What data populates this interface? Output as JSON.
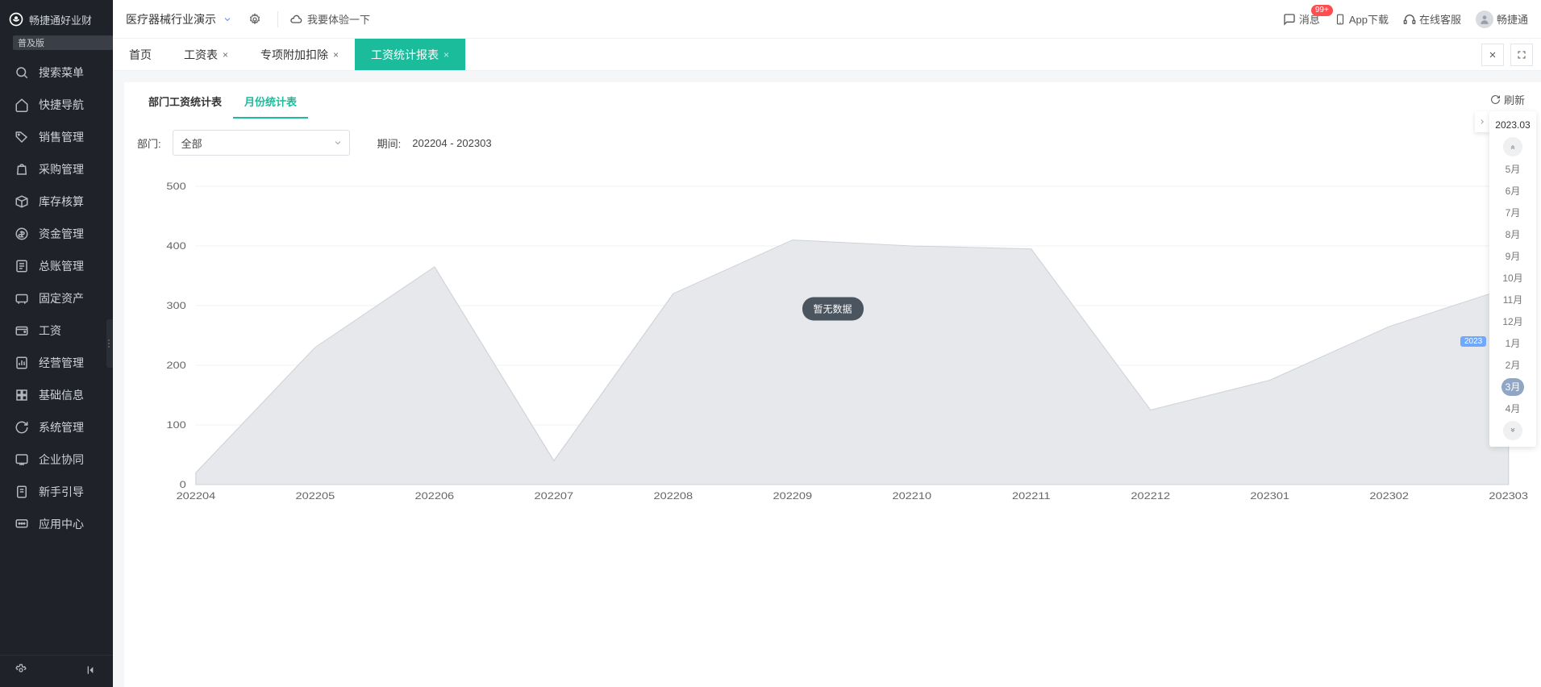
{
  "brand": {
    "name": "畅捷通好业财",
    "edition": "普及版"
  },
  "sidebar": {
    "items": [
      {
        "label": "搜索菜单",
        "icon": "search"
      },
      {
        "label": "快捷导航",
        "icon": "home"
      },
      {
        "label": "销售管理",
        "icon": "tag"
      },
      {
        "label": "采购管理",
        "icon": "bag"
      },
      {
        "label": "库存核算",
        "icon": "box"
      },
      {
        "label": "资金管理",
        "icon": "coin"
      },
      {
        "label": "总账管理",
        "icon": "ledger"
      },
      {
        "label": "固定资产",
        "icon": "asset"
      },
      {
        "label": "工资",
        "icon": "wallet"
      },
      {
        "label": "经营管理",
        "icon": "report"
      },
      {
        "label": "基础信息",
        "icon": "grid"
      },
      {
        "label": "系统管理",
        "icon": "sync"
      },
      {
        "label": "企业协同",
        "icon": "collab"
      },
      {
        "label": "新手引导",
        "icon": "guide"
      },
      {
        "label": "应用中心",
        "icon": "apps"
      }
    ]
  },
  "topbar": {
    "org": "医疗器械行业演示",
    "trial": "我要体验一下",
    "messages": "消息",
    "badge": "99+",
    "download": "App下载",
    "support": "在线客服",
    "user": "畅捷通"
  },
  "tabs": [
    {
      "label": "首页",
      "closable": false
    },
    {
      "label": "工资表",
      "closable": true
    },
    {
      "label": "专项附加扣除",
      "closable": true
    },
    {
      "label": "工资统计报表",
      "closable": true,
      "active": true
    }
  ],
  "subtabs": [
    {
      "label": "部门工资统计表"
    },
    {
      "label": "月份统计表",
      "active": true
    }
  ],
  "refresh_label": "刷新",
  "filters": {
    "dept_label": "部门:",
    "dept_value": "全部",
    "period_label": "期间:",
    "period_value": "202204 - 202303"
  },
  "chart": {
    "type": "area",
    "ylim": [
      0,
      500
    ],
    "ytick_step": 100,
    "categories": [
      "202204",
      "202205",
      "202206",
      "202207",
      "202208",
      "202209",
      "202210",
      "202211",
      "202212",
      "202301",
      "202302",
      "202303"
    ],
    "values": [
      20,
      230,
      365,
      40,
      320,
      410,
      400,
      395,
      125,
      175,
      265,
      330
    ],
    "fill_color": "#e6e8eb",
    "stroke_color": "#cfd3d8",
    "grid_color": "#f0f1f3",
    "axis_color": "#d9dce0",
    "background_color": "#ffffff",
    "label_fontsize": 12,
    "label_color": "#666666",
    "no_data_label": "暂无数据"
  },
  "period_picker": {
    "header": "2023.03",
    "year_tag": "2023",
    "items": [
      "5月",
      "6月",
      "7月",
      "8月",
      "9月",
      "10月",
      "11月",
      "12月",
      "1月",
      "2月",
      "3月",
      "4月"
    ],
    "current_index": 10,
    "year_tag_before_index": 8
  },
  "colors": {
    "sidebar_bg": "#1f2329",
    "accent": "#1abc9c",
    "badge": "#ff4d4f"
  }
}
